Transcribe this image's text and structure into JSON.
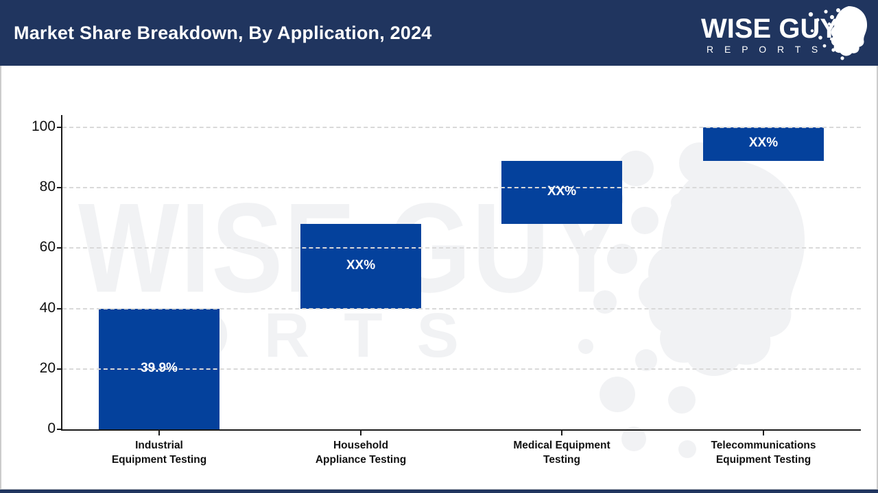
{
  "header": {
    "title": "Market Share Breakdown, By Application, 2024",
    "logo": {
      "line1": "WISE GUY",
      "line2": "R E P O R T S"
    }
  },
  "watermark": {
    "line1": "WISE GUY",
    "line2": "PORTS"
  },
  "chart_data": {
    "type": "bar",
    "subtype": "waterfall",
    "title": "Market Share Breakdown, By Application, 2024",
    "categories": [
      "Industrial Equipment Testing",
      "Household Appliance Testing",
      "Medical Equipment Testing",
      "Telecommunications Equipment Testing"
    ],
    "category_lines": [
      [
        "Industrial",
        "Equipment Testing"
      ],
      [
        "Household",
        "Appliance Testing"
      ],
      [
        "Medical Equipment",
        "Testing"
      ],
      [
        "Telecommunications",
        "Equipment Testing"
      ]
    ],
    "segments": [
      {
        "category": "Industrial Equipment Testing",
        "start": 0,
        "end": 39.9,
        "label": "39.9%"
      },
      {
        "category": "Household Appliance Testing",
        "start": 39.9,
        "end": 68,
        "label": "XX%"
      },
      {
        "category": "Medical Equipment Testing",
        "start": 68,
        "end": 89,
        "label": "XX%"
      },
      {
        "category": "Telecommunications Equipment Testing",
        "start": 89,
        "end": 100,
        "label": "XX%"
      }
    ],
    "xlabel": "",
    "ylabel": "",
    "yticks": [
      0,
      20,
      40,
      60,
      80,
      100
    ],
    "ylim": [
      0,
      107
    ],
    "grid": "horizontal-dashed-over-bars",
    "legend": "none",
    "bar_color": "#04419c",
    "value_label_color": "#ffffff",
    "header_color": "#20355f",
    "watermark_color": "#f1f2f4"
  }
}
